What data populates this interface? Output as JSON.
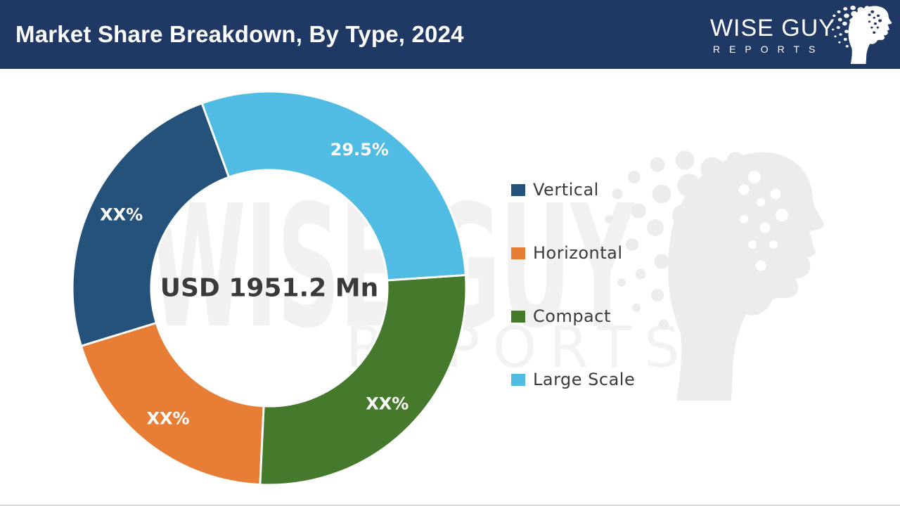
{
  "header": {
    "title": "Market Share Breakdown, By Type, 2024",
    "logo": {
      "line1": "WISE GUY",
      "line2": "REPORTS"
    }
  },
  "watermark": {
    "line1": "WISE GUY",
    "line2": "REPORTS"
  },
  "chart_data": {
    "type": "pie",
    "subtype": "donut",
    "title": "Market Share Breakdown, By Type, 2024",
    "center_label": "USD 1951.2 Mn",
    "units": "percent share",
    "start_angle_deg": -20,
    "direction": "counterclockwise",
    "inner_radius_ratio": 0.6,
    "legend_position": "right",
    "series": [
      {
        "name": "Vertical",
        "value": 24.2,
        "label": "XX%",
        "color": "#24527A"
      },
      {
        "name": "Horizontal",
        "value": 19.5,
        "label": "XX%",
        "color": "#E87E35"
      },
      {
        "name": "Compact",
        "value": 26.8,
        "label": "XX%",
        "color": "#45792B"
      },
      {
        "name": "Large Scale",
        "value": 29.5,
        "label": "29.5%",
        "color": "#50BBE3"
      }
    ]
  },
  "colors": {
    "header_bg": "#1F3864",
    "slice_label": "#FFFFFF",
    "center_label": "#3A3A3A",
    "legend_text": "#3A3A3A",
    "watermark": "#F0F0F0",
    "bottom_line": "#D9D9D9"
  }
}
